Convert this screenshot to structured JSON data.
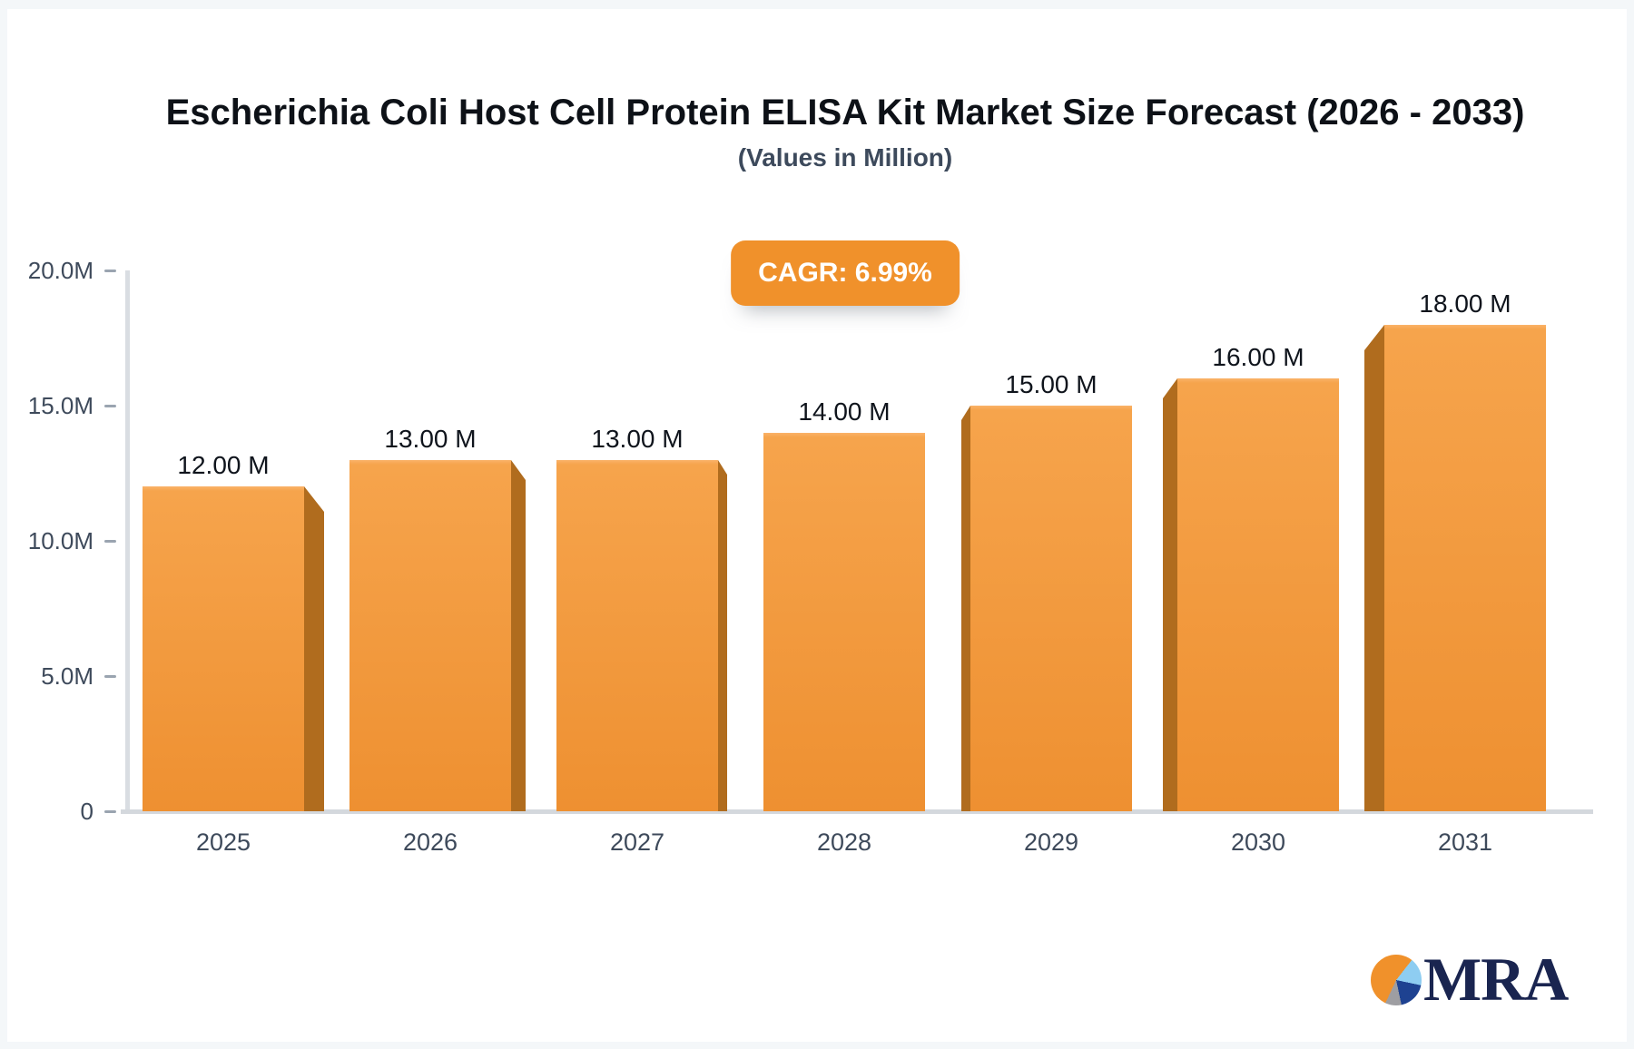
{
  "header": {
    "title": "Escherichia Coli Host Cell Protein ELISA Kit Market Size Forecast (2026 - 2033)",
    "subtitle": "(Values in Million)"
  },
  "badge": {
    "label": "CAGR: 6.99%",
    "background": "#f0912b",
    "text_color": "#ffffff"
  },
  "chart_data": {
    "type": "bar",
    "title": "Escherichia Coli Host Cell Protein ELISA Kit Market Size Forecast (2026 - 2033)",
    "subtitle": "(Values in Million)",
    "annotation": "CAGR: 6.99%",
    "categories": [
      "2025",
      "2026",
      "2027",
      "2028",
      "2029",
      "2030",
      "2031"
    ],
    "values": [
      12,
      13,
      13,
      14,
      15,
      16,
      18
    ],
    "value_labels": [
      "12.00 M",
      "13.00 M",
      "13.00 M",
      "14.00 M",
      "15.00 M",
      "16.00 M",
      "18.00 M"
    ],
    "unit": "Million",
    "xlabel": "",
    "ylabel": "",
    "ylim": [
      0,
      20
    ],
    "y_ticks": [
      "0",
      "5.0M",
      "10.0M",
      "15.0M",
      "20.0M"
    ],
    "y_tick_values": [
      0,
      5,
      10,
      15,
      20
    ],
    "grid": false,
    "legend": false,
    "bar_color": "#f0943a",
    "bar_side_color": "#b06c1e"
  },
  "logo": {
    "text": "MRA",
    "colors": {
      "orange": "#f0912b",
      "light_blue": "#8ecdf1",
      "navy": "#1e4291",
      "gray": "#9e9ea2",
      "text_navy": "#1a2550"
    }
  }
}
